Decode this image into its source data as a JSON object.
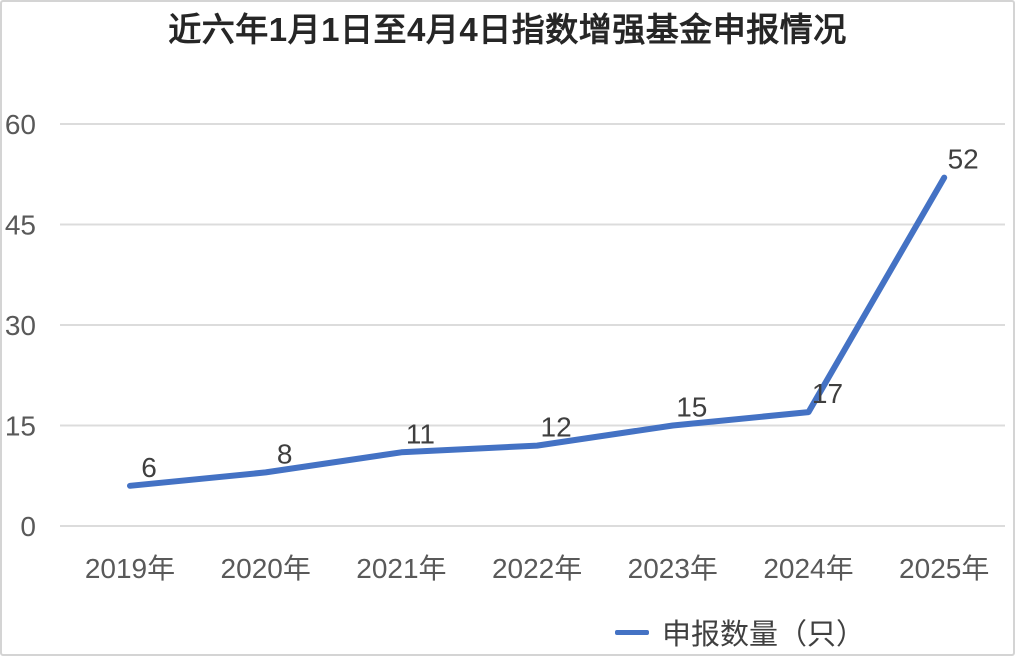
{
  "title": "近六年1月1日至4月4日指数增强基金申报情况",
  "legend": {
    "label": "申报数量（只）"
  },
  "chart_data": {
    "type": "line",
    "title": "近六年1月1日至4月4日指数增强基金申报情况",
    "categories": [
      "2019年",
      "2020年",
      "2021年",
      "2022年",
      "2023年",
      "2024年",
      "2025年"
    ],
    "series": [
      {
        "name": "申报数量（只）",
        "values": [
          6,
          8,
          11,
          12,
          15,
          17,
          52
        ]
      }
    ],
    "data_labels": [
      "6",
      "8",
      "11",
      "12",
      "15",
      "17",
      "52"
    ],
    "xlabel": "",
    "ylabel": "",
    "ylim": [
      0,
      60
    ],
    "yticks": [
      0,
      15,
      30,
      45,
      60
    ],
    "grid": true,
    "legend_position": "bottom",
    "colors": {
      "line": "#4472C4",
      "gridline": "#DCDCDC",
      "tick_label": "#595959",
      "data_label": "#3F3F3F",
      "title": "#262626",
      "background": "#FFFFFF",
      "border": "#D4D4D4"
    }
  }
}
